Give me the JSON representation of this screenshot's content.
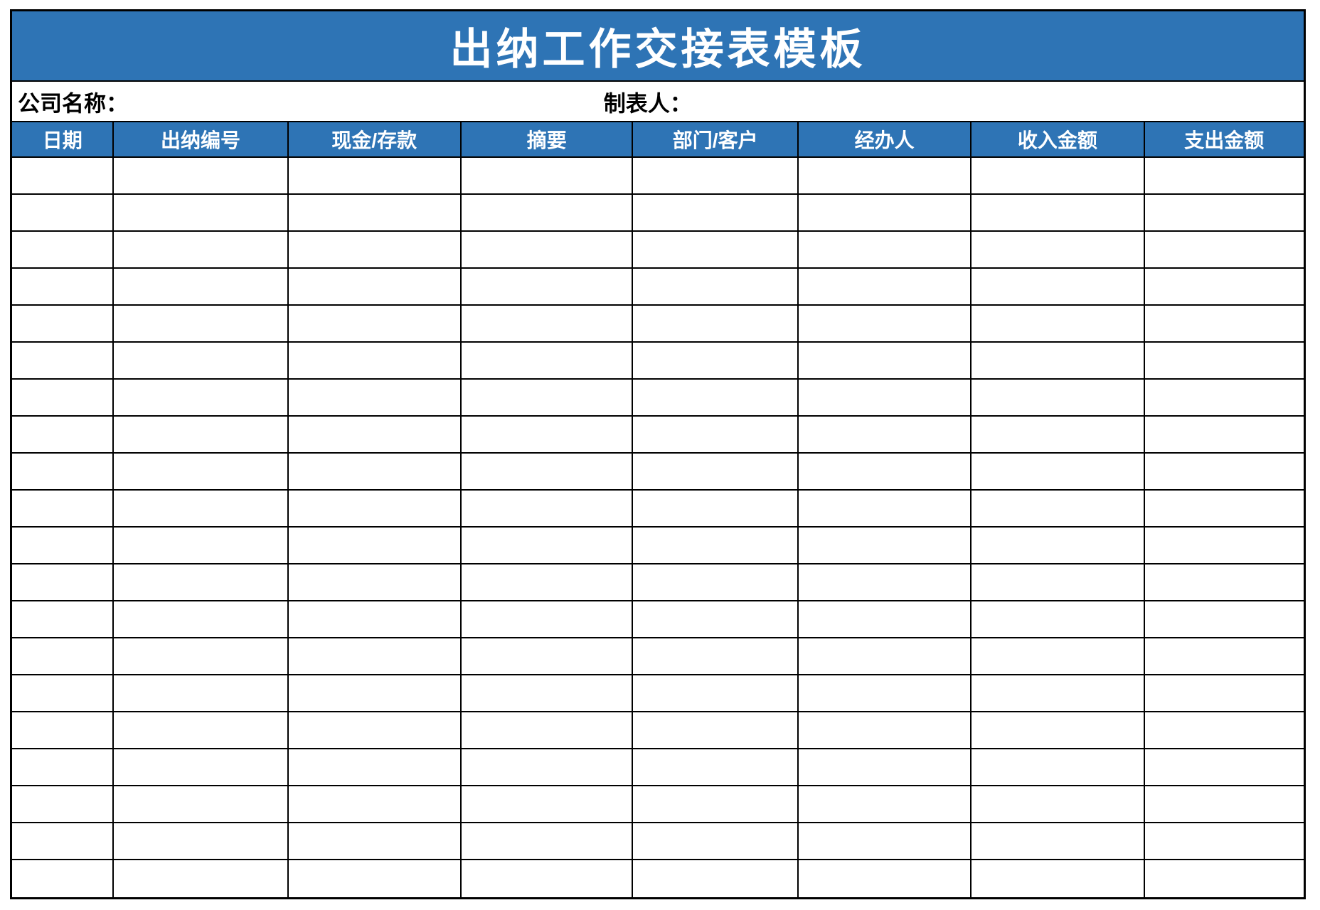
{
  "page_title": "出纳工作交接表模板",
  "colors": {
    "accent_blue": "#2E74B5",
    "grid_black": "#000000",
    "title_text": "#FFFFFF",
    "page_bg": "#FFFFFF"
  },
  "meta_row": {
    "company_label": "公司名称：",
    "preparer_label": "制表人："
  },
  "table": {
    "columns": [
      {
        "label": "日期",
        "width_pct": 7.9
      },
      {
        "label": "出纳编号",
        "width_pct": 13.5
      },
      {
        "label": "现金/存款",
        "width_pct": 13.4
      },
      {
        "label": "摘要",
        "width_pct": 13.3
      },
      {
        "label": "部门/客户",
        "width_pct": 12.8
      },
      {
        "label": "经办人",
        "width_pct": 13.4
      },
      {
        "label": "收入金额",
        "width_pct": 13.4
      },
      {
        "label": "支出金额",
        "width_pct": 12.3
      }
    ],
    "empty_row_count": 20,
    "cell_values": []
  }
}
